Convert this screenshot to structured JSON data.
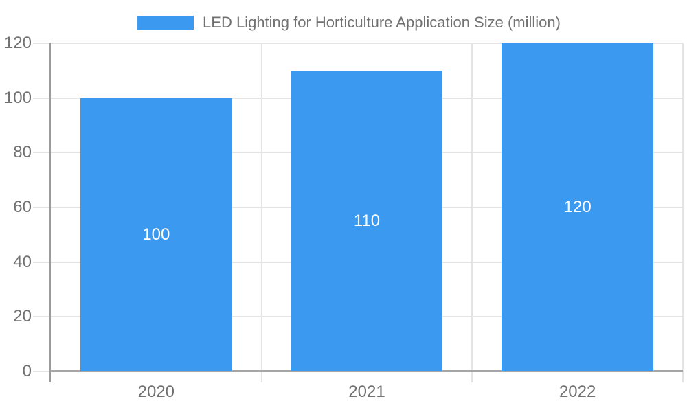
{
  "legend": {
    "label": "LED Lighting for Horticulture Application Size (million)"
  },
  "chart_data": {
    "type": "bar",
    "title": "LED Lighting for Horticulture Application Size (million)",
    "categories": [
      "2020",
      "2021",
      "2022"
    ],
    "series": [
      {
        "name": "LED Lighting for Horticulture Application Size (million)",
        "values": [
          100,
          110,
          120
        ]
      }
    ],
    "data_labels": [
      "100",
      "110",
      "120"
    ],
    "xlabel": "",
    "ylabel": "",
    "ylim": [
      0,
      120
    ],
    "yticks": [
      0,
      20,
      40,
      60,
      80,
      100,
      120
    ],
    "grid": true,
    "legend_position": "top-center"
  },
  "colors": {
    "bar": "#3B99F0",
    "data_label": "#ffffff",
    "gridline": "#e4e4e4",
    "axis_line": "#9b9b9b",
    "baseline": "#a6a6a6",
    "text": "#717171",
    "background": "#ffffff"
  }
}
